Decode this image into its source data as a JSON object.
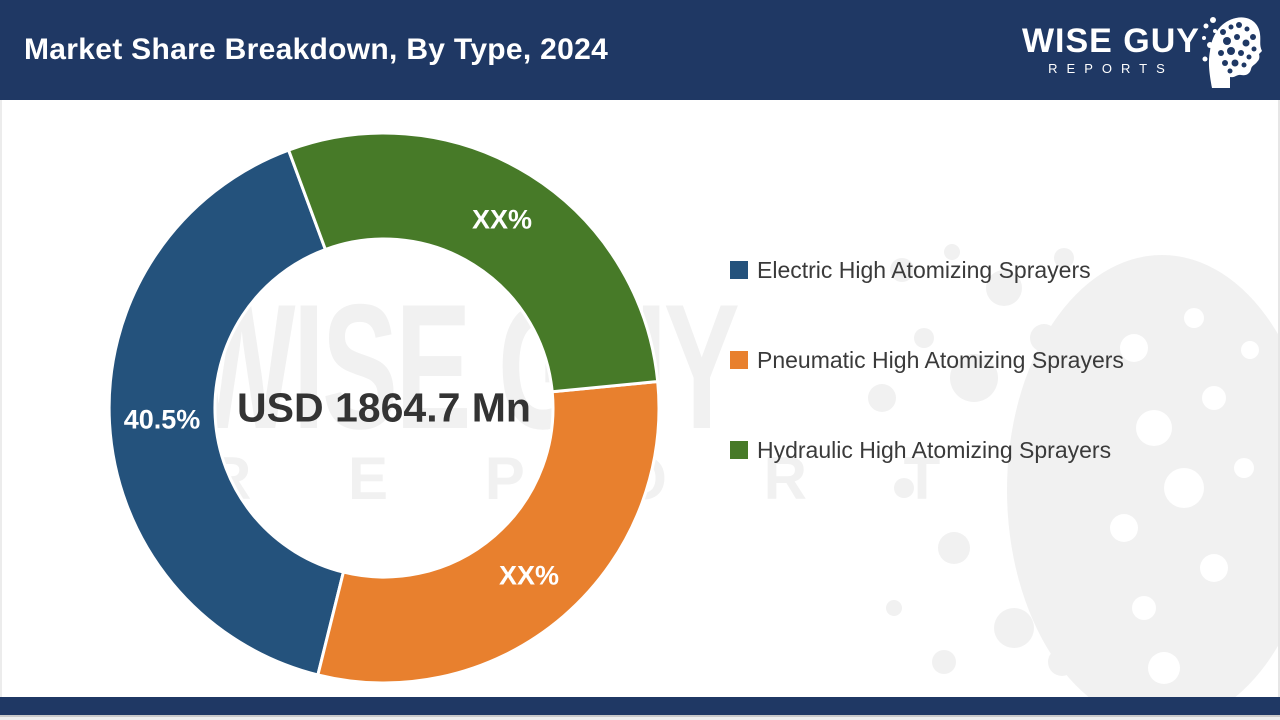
{
  "header": {
    "title": "Market Share Breakdown, By Type, 2024",
    "logo": {
      "line1": "WISE GUY",
      "line2": "REPORTS"
    }
  },
  "watermark": {
    "line1": "WISE GUY",
    "line2": "R E P O R T S"
  },
  "chart_data": {
    "type": "pie",
    "subtype": "donut",
    "title": "Market Share Breakdown, By Type, 2024",
    "center_label": "USD 1864.7 Mn",
    "legend_position": "right",
    "start_angle_deg": 110.3,
    "direction": "counterclockwise",
    "inner_radius_ratio": 0.615,
    "series": [
      {
        "name": "Electric High Atomizing Sprayers",
        "value": 40.5,
        "display_label": "40.5%",
        "color": "#24527C"
      },
      {
        "name": "Pneumatic High Atomizing Sprayers",
        "value": 30.4,
        "display_label": "XX%",
        "color": "#E8802E"
      },
      {
        "name": "Hydraulic High Atomizing Sprayers",
        "value": 29.1,
        "display_label": "XX%",
        "color": "#477A28"
      }
    ]
  },
  "colors": {
    "header_bg": "#1F3864",
    "footer_bg": "#1F3864",
    "watermark": "#F1F1F1",
    "center_text": "#333333",
    "legend_text": "#3A3A3A",
    "wedge_separator": "#FFFFFF"
  }
}
